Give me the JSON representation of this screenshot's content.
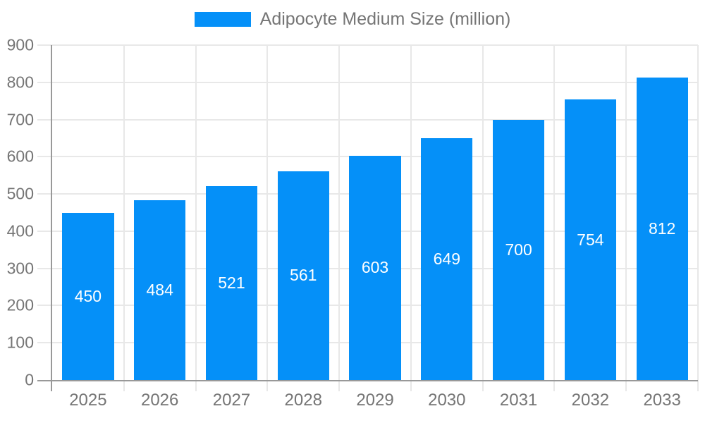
{
  "chart_data": {
    "type": "bar",
    "title": "",
    "legend_position": "top",
    "categories": [
      "2025",
      "2026",
      "2027",
      "2028",
      "2029",
      "2030",
      "2031",
      "2032",
      "2033"
    ],
    "series": [
      {
        "name": "Adipocyte Medium Size (million)",
        "values": [
          450,
          484,
          521,
          561,
          603,
          649,
          700,
          754,
          812
        ]
      }
    ],
    "ylim": [
      0,
      900
    ],
    "yticks": [
      0,
      100,
      200,
      300,
      400,
      500,
      600,
      700,
      800,
      900
    ],
    "grid": true,
    "colors": {
      "bar": "#0590F8",
      "grid": "#E8E8E8",
      "axis": "#999999",
      "tick_text": "#757575",
      "value_label": "#FFFFFF",
      "background": "#FFFFFF"
    }
  }
}
